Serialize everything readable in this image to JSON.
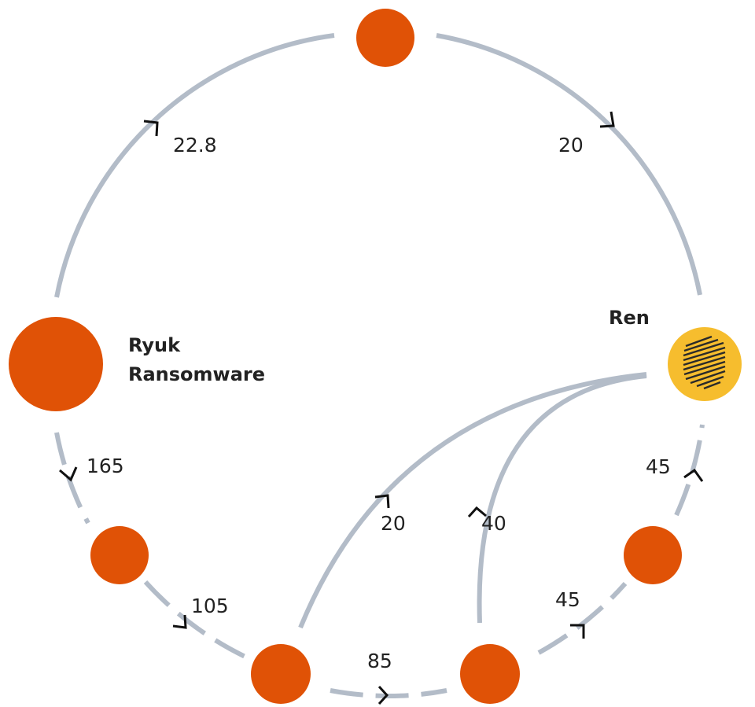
{
  "nodes": [
    {
      "label": [
        "Ryuk",
        "Ransomware"
      ]
    },
    {
      "label": "Ren"
    }
  ],
  "edges": [
    {
      "label": "22.8"
    },
    {
      "label": "20"
    },
    {
      "label": "165"
    },
    {
      "label": "105"
    },
    {
      "label": "85"
    },
    {
      "label": "45"
    },
    {
      "label": "45"
    },
    {
      "label": "20"
    },
    {
      "label": "40"
    }
  ]
}
